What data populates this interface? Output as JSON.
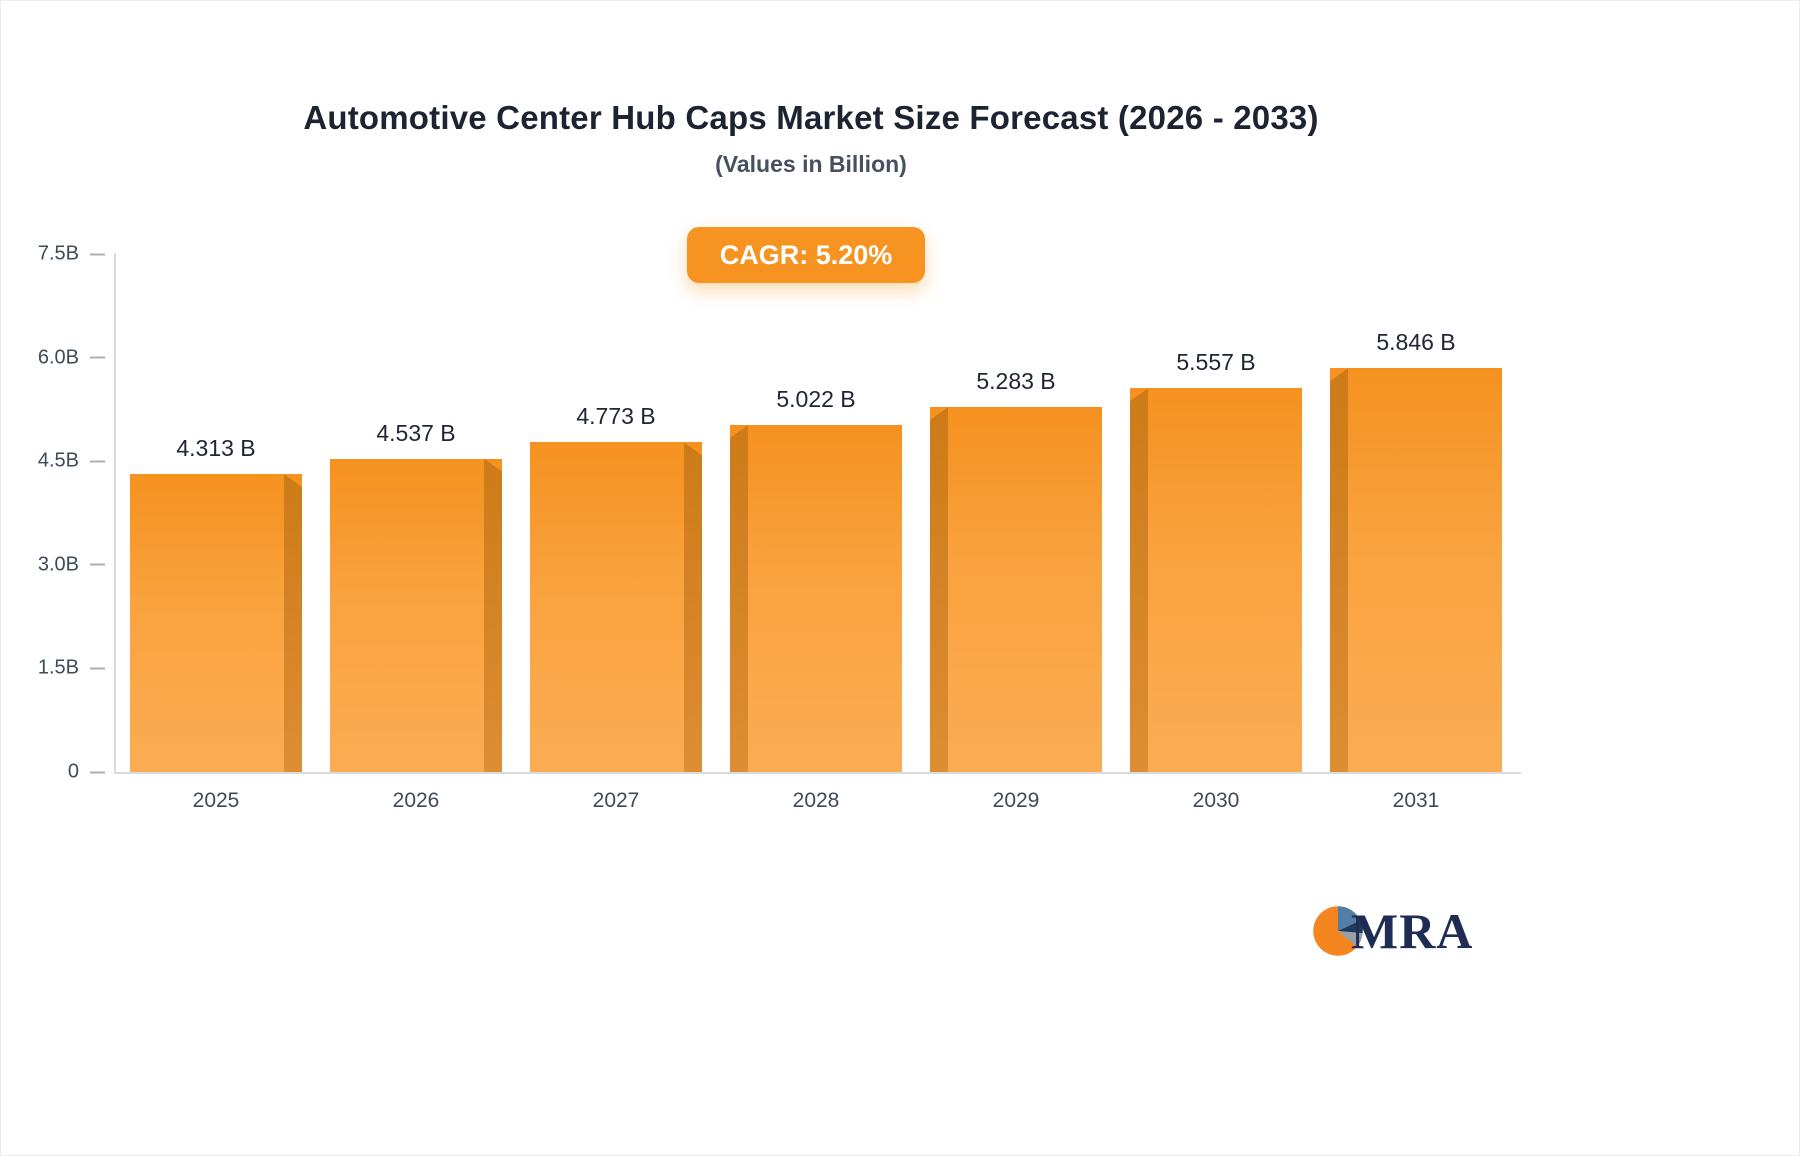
{
  "chart_data": {
    "type": "bar",
    "title": "Automotive Center Hub Caps Market Size Forecast (2026 - 2033)",
    "subtitle": "(Values in Billion)",
    "annotation": "CAGR: 5.20%",
    "categories": [
      "2025",
      "2026",
      "2027",
      "2028",
      "2029",
      "2030",
      "2031"
    ],
    "values": [
      4.313,
      4.537,
      4.773,
      5.022,
      5.283,
      5.557,
      5.846
    ],
    "value_labels": [
      "4.313 B",
      "4.537 B",
      "4.773 B",
      "5.022 B",
      "5.283 B",
      "5.557 B",
      "5.846 B"
    ],
    "ylim": [
      0,
      7.5
    ],
    "y_ticks": [
      {
        "label": "0",
        "value": 0
      },
      {
        "label": "1.5B",
        "value": 1.5
      },
      {
        "label": "3.0B",
        "value": 3.0
      },
      {
        "label": "4.5B",
        "value": 4.5
      },
      {
        "label": "6.0B",
        "value": 6.0
      },
      {
        "label": "7.5B",
        "value": 7.5
      }
    ],
    "grid": "off",
    "legend": "none",
    "bar_color": "#F89730",
    "bar_side_color": "#CD7A18",
    "badge_color": "#F79421"
  },
  "logo": {
    "text": "MRA"
  }
}
